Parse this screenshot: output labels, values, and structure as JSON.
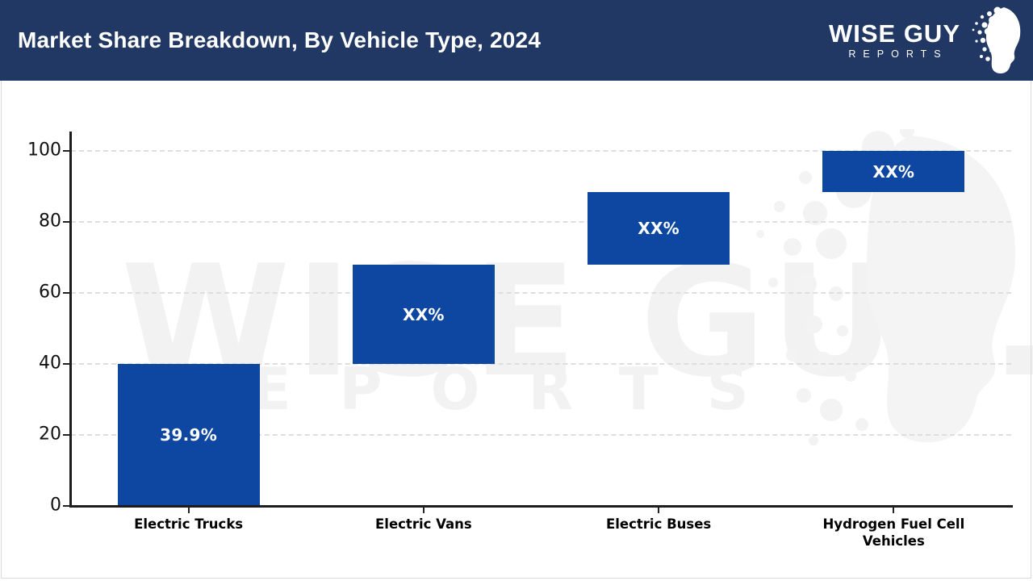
{
  "header": {
    "title": "Market Share Breakdown, By Vehicle Type, 2024",
    "logo": {
      "line1": "WISE GUY",
      "line2": "REPORTS"
    }
  },
  "watermark": {
    "line1": "WISE GUY.",
    "line2": "REPORTS"
  },
  "chart_data": {
    "type": "bar",
    "subtype": "waterfall-stacked",
    "title": "Market Share Breakdown, By Vehicle Type, 2024",
    "categories": [
      "Electric Trucks",
      "Electric Vans",
      "Electric Buses",
      "Hydrogen Fuel Cell Vehicles"
    ],
    "series": [
      {
        "name": "Market Share",
        "segments": [
          {
            "start": 0,
            "end": 39.9,
            "label": "39.9%"
          },
          {
            "start": 39.9,
            "end": 68,
            "label": "XX%"
          },
          {
            "start": 68,
            "end": 88.4,
            "label": "XX%"
          },
          {
            "start": 88.4,
            "end": 100,
            "label": "XX%"
          }
        ]
      }
    ],
    "xlabel": "",
    "ylabel": "",
    "ylim": [
      0,
      100
    ],
    "yticks": [
      0,
      20,
      40,
      60,
      80,
      100
    ],
    "grid": "horizontal-dashed",
    "legend": "none",
    "bar_color": "#0d47a1",
    "label_color": "#ffffff"
  }
}
